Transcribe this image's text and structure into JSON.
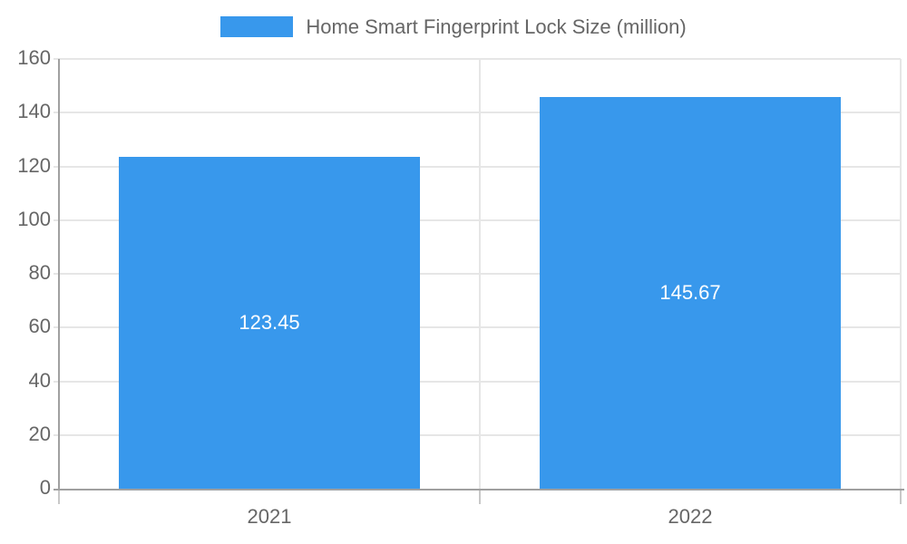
{
  "legend": {
    "label": "Home Smart Fingerprint Lock Size (million)"
  },
  "chart_data": {
    "type": "bar",
    "categories": [
      "2021",
      "2022"
    ],
    "values": [
      123.45,
      145.67
    ],
    "bar_labels": [
      "123.45",
      "145.67"
    ],
    "series_name": "Home Smart Fingerprint Lock Size (million)",
    "title": "",
    "xlabel": "",
    "ylabel": "",
    "ylim": [
      0,
      160
    ],
    "ytick_step": 20,
    "ytick_labels": [
      "0",
      "20",
      "40",
      "60",
      "80",
      "100",
      "120",
      "140",
      "160"
    ],
    "grid": true,
    "legend_position": "top"
  },
  "colors": {
    "bar": "#3898EC",
    "grid": "#E6E6E6",
    "axis": "#A0A0A0",
    "tick_mark": "#C8C8C8",
    "tick_text": "#666666",
    "bar_label": "#FFFFFF",
    "background": "#FFFFFF"
  }
}
